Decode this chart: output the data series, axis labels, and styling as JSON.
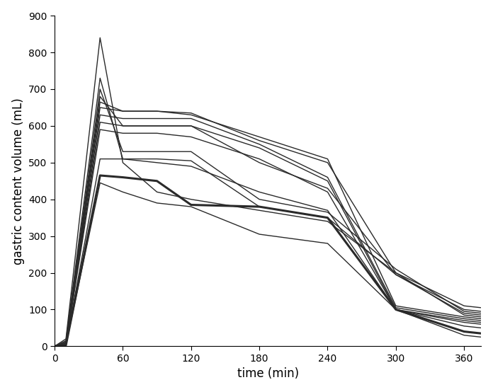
{
  "title": "",
  "xlabel": "time (min)",
  "ylabel": "gastric content volume (mL)",
  "xlim": [
    0,
    375
  ],
  "ylim": [
    0,
    900
  ],
  "xticks": [
    0,
    60,
    120,
    180,
    240,
    300,
    360
  ],
  "yticks": [
    0,
    100,
    200,
    300,
    400,
    500,
    600,
    700,
    800,
    900
  ],
  "background_color": "#ffffff",
  "line_color": "#2a2a2a",
  "time_points": [
    0,
    10,
    40,
    60,
    90,
    120,
    180,
    240,
    300,
    360,
    375
  ],
  "series": [
    [
      0,
      20,
      840,
      500,
      420,
      400,
      370,
      340,
      200,
      110,
      105
    ],
    [
      0,
      15,
      730,
      510,
      510,
      505,
      380,
      350,
      195,
      100,
      95
    ],
    [
      0,
      10,
      700,
      530,
      530,
      530,
      400,
      365,
      210,
      95,
      90
    ],
    [
      0,
      12,
      680,
      600,
      600,
      600,
      500,
      430,
      195,
      90,
      85
    ],
    [
      0,
      8,
      665,
      640,
      640,
      635,
      560,
      500,
      200,
      85,
      80
    ],
    [
      0,
      6,
      650,
      640,
      640,
      630,
      570,
      510,
      110,
      80,
      75
    ],
    [
      0,
      5,
      630,
      620,
      620,
      620,
      550,
      460,
      105,
      75,
      70
    ],
    [
      0,
      5,
      610,
      600,
      600,
      600,
      540,
      450,
      100,
      70,
      65
    ],
    [
      0,
      4,
      590,
      580,
      580,
      570,
      510,
      420,
      100,
      65,
      60
    ],
    [
      0,
      4,
      510,
      510,
      500,
      490,
      420,
      370,
      100,
      55,
      50
    ],
    [
      0,
      3,
      465,
      460,
      450,
      385,
      380,
      350,
      100,
      40,
      35
    ],
    [
      0,
      3,
      445,
      420,
      390,
      380,
      305,
      280,
      100,
      30,
      25
    ]
  ],
  "linewidths": [
    1.0,
    1.0,
    1.0,
    1.0,
    1.0,
    1.0,
    1.0,
    1.0,
    1.0,
    1.0,
    2.2,
    1.0
  ]
}
